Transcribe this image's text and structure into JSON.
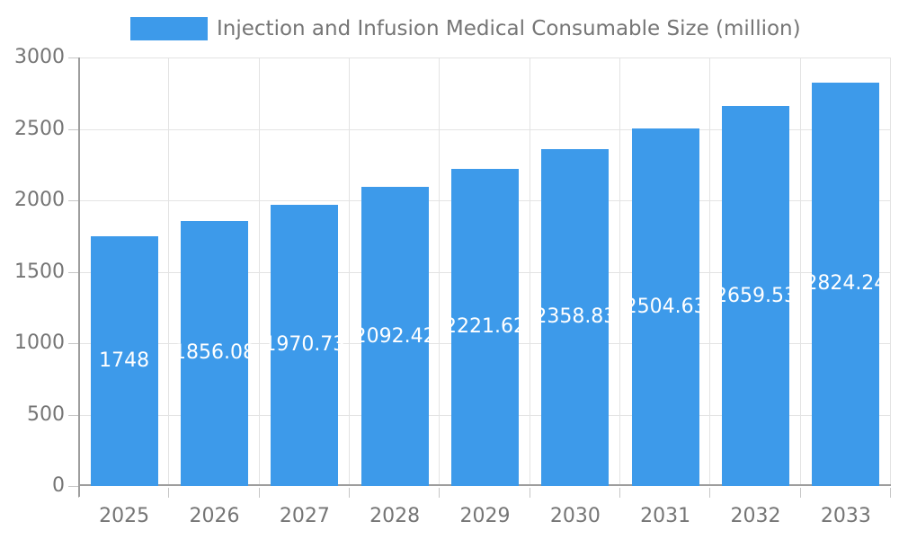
{
  "legend": {
    "label": "Injection and Infusion Medical Consumable Size (million)"
  },
  "chart_data": {
    "type": "bar",
    "title": "Injection and Infusion Medical Consumable Size (million)",
    "categories": [
      "2025",
      "2026",
      "2027",
      "2028",
      "2029",
      "2030",
      "2031",
      "2032",
      "2033"
    ],
    "values": [
      1748,
      1856.08,
      1970.73,
      2092.42,
      2221.62,
      2358.83,
      2504.63,
      2659.53,
      2824.24
    ],
    "value_labels": [
      "1748",
      "1856.08",
      "1970.73",
      "2092.42",
      "2221.62",
      "2358.83",
      "2504.63",
      "2659.53",
      "2824.24"
    ],
    "xlabel": "",
    "ylabel": "",
    "ylim": [
      0,
      3000
    ],
    "yticks": [
      0,
      500,
      1000,
      1500,
      2000,
      2500,
      3000
    ],
    "grid": true,
    "legend_position": "top",
    "value_label_position": "center-of-bar"
  },
  "colors": {
    "bar": "#3D9AEA",
    "axis_text": "#757575",
    "gridline": "#E3E3E3",
    "axis_line": "#9D9D9D",
    "tick": "#C6C6C6",
    "value_label": "#FFFFFF"
  }
}
